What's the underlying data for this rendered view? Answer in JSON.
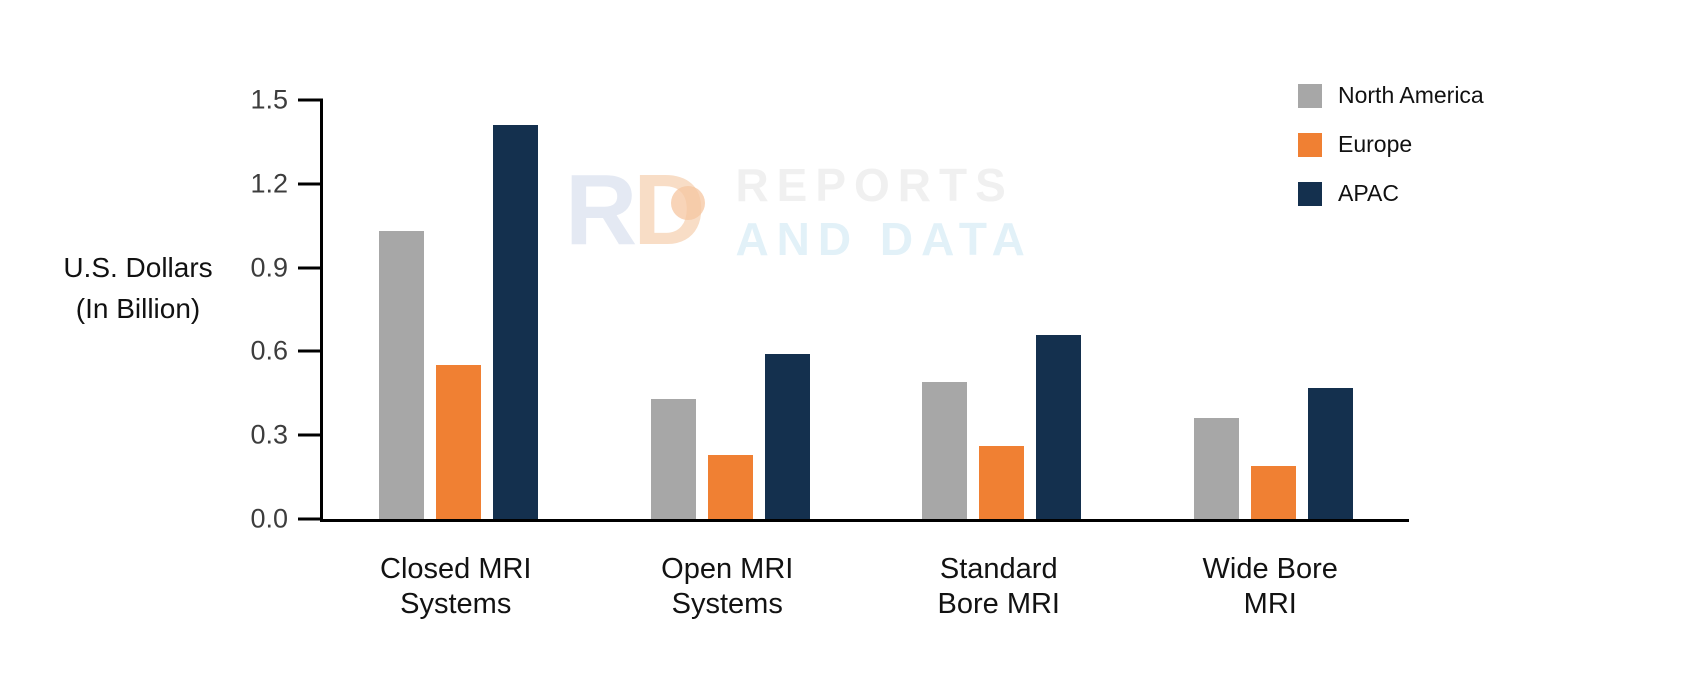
{
  "y_axis_title": {
    "line1": "U.S. Dollars",
    "line2": "(In Billion)"
  },
  "watermark": {
    "logo_letter_1": "R",
    "logo_letter_2": "D",
    "text_line_1": "REPORTS",
    "text_line_2": "AND DATA"
  },
  "legend": {
    "items": [
      {
        "label": "North America",
        "color": "#a7a7a7"
      },
      {
        "label": "Europe",
        "color": "#f08033"
      },
      {
        "label": "APAC",
        "color": "#14304e"
      }
    ]
  },
  "chart_data": {
    "type": "bar",
    "title": "",
    "xlabel": "",
    "ylabel": "U.S. Dollars (In Billion)",
    "ylim": [
      0,
      1.5
    ],
    "yticks": [
      0.0,
      0.3,
      0.6,
      0.9,
      1.2,
      1.5
    ],
    "ytick_labels": [
      "0.0",
      "0.3",
      "0.6",
      "0.9",
      "1.2",
      "1.5"
    ],
    "grid": false,
    "legend_position": "top-right",
    "categories": [
      "Closed MRI Systems",
      "Open MRI Systems",
      "Standard Bore MRI",
      "Wide Bore MRI"
    ],
    "categories_display": [
      [
        "Closed MRI",
        "Systems"
      ],
      [
        "Open MRI",
        "Systems"
      ],
      [
        "Standard",
        "Bore MRI"
      ],
      [
        "Wide Bore",
        "MRI"
      ]
    ],
    "series": [
      {
        "name": "North America",
        "color": "#a7a7a7",
        "values": [
          1.03,
          0.43,
          0.49,
          0.36
        ]
      },
      {
        "name": "Europe",
        "color": "#f08033",
        "values": [
          0.55,
          0.23,
          0.26,
          0.19
        ]
      },
      {
        "name": "APAC",
        "color": "#14304e",
        "values": [
          1.41,
          0.59,
          0.66,
          0.47
        ]
      }
    ]
  }
}
